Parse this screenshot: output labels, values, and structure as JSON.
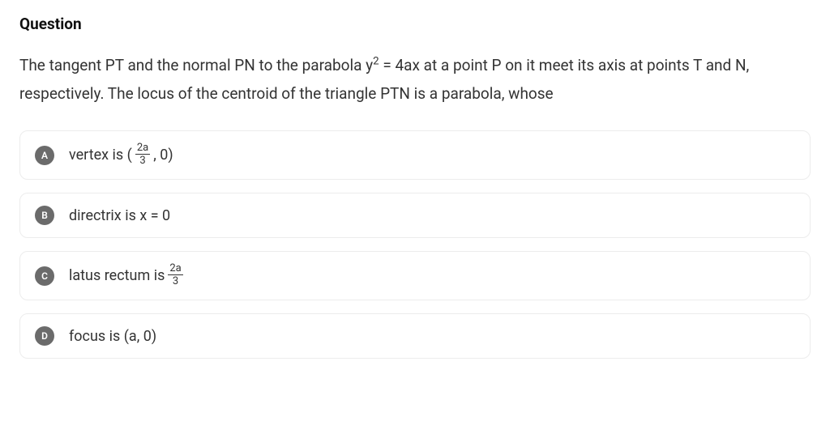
{
  "heading": "Question",
  "question": {
    "part1": "The tangent PT and the normal PN to the parabola y",
    "sup1": "2",
    "part2": " = 4ax at a point P on it meet its axis at points T and N, respectively. The locus of the centroid of the triangle PTN is a parabola, whose"
  },
  "options": {
    "a": {
      "letter": "A",
      "pre": "vertex is (",
      "frac_num": "2a",
      "frac_den": "3",
      "post": ", 0)"
    },
    "b": {
      "letter": "B",
      "text": "directrix is x = 0"
    },
    "c": {
      "letter": "C",
      "pre": "latus rectum is ",
      "frac_num": "2a",
      "frac_den": "3",
      "post": ""
    },
    "d": {
      "letter": "D",
      "text": "focus is (a, 0)"
    }
  },
  "colors": {
    "badge_bg": "#6b6b6b",
    "border": "#ececec",
    "text": "#333333"
  }
}
